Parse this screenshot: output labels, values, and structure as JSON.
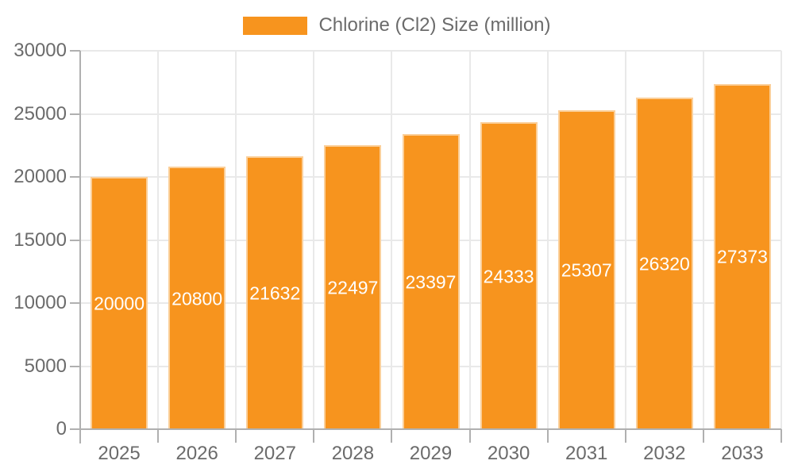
{
  "chart_data": {
    "type": "bar",
    "title": "",
    "legend_label": "Chlorine (Cl2) Size (million)",
    "legend_position": "top-center",
    "categories": [
      "2025",
      "2026",
      "2027",
      "2028",
      "2029",
      "2030",
      "2031",
      "2032",
      "2033"
    ],
    "series": [
      {
        "name": "Chlorine (Cl2) Size (million)",
        "values": [
          20000,
          20800,
          21632,
          22497,
          23397,
          24333,
          25307,
          26320,
          27373
        ]
      }
    ],
    "data_labels_shown": true,
    "xlabel": "",
    "ylabel": "",
    "ylim": [
      0,
      30000
    ],
    "yticks": [
      0,
      5000,
      10000,
      15000,
      20000,
      25000,
      30000
    ],
    "grid": true,
    "colors": {
      "bar": "#F7941E",
      "bar_label": "#FFFFFF",
      "axis": "#B0B0B0",
      "grid": "#E9E9E9",
      "text": "#6B6B6B",
      "background": "#FFFFFF"
    }
  }
}
